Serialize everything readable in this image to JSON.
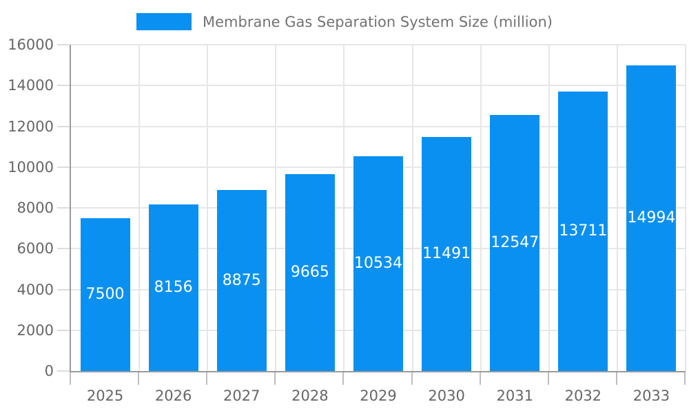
{
  "chart_data": {
    "type": "bar",
    "title": "Membrane Gas Separation System Size (million)",
    "legend": {
      "label": "Membrane Gas Separation System Size (million)",
      "position": "top-center"
    },
    "categories": [
      "2025",
      "2026",
      "2027",
      "2028",
      "2029",
      "2030",
      "2031",
      "2032",
      "2033"
    ],
    "series": [
      {
        "name": "Membrane Gas Separation System Size (million)",
        "values": [
          7500,
          8156,
          8875,
          9665,
          10534,
          11491,
          12547,
          13711,
          14994
        ]
      }
    ],
    "value_labels": [
      "7500",
      "8156",
      "8875",
      "9665",
      "10534",
      "11491",
      "12547",
      "13711",
      "14994"
    ],
    "xlabel": "",
    "ylabel": "",
    "ylim": [
      0,
      16000
    ],
    "ytick_step": 2000,
    "yticks": [
      "0",
      "2000",
      "4000",
      "6000",
      "8000",
      "10000",
      "12000",
      "14000",
      "16000"
    ],
    "grid": true,
    "colors": {
      "bar": "#0a90f0",
      "bar_value_text": "#ffffff",
      "axis_text": "#666666",
      "legend_text": "#737373",
      "gridline": "#e6e6e6",
      "axis_border": "#9a9a9a"
    }
  }
}
